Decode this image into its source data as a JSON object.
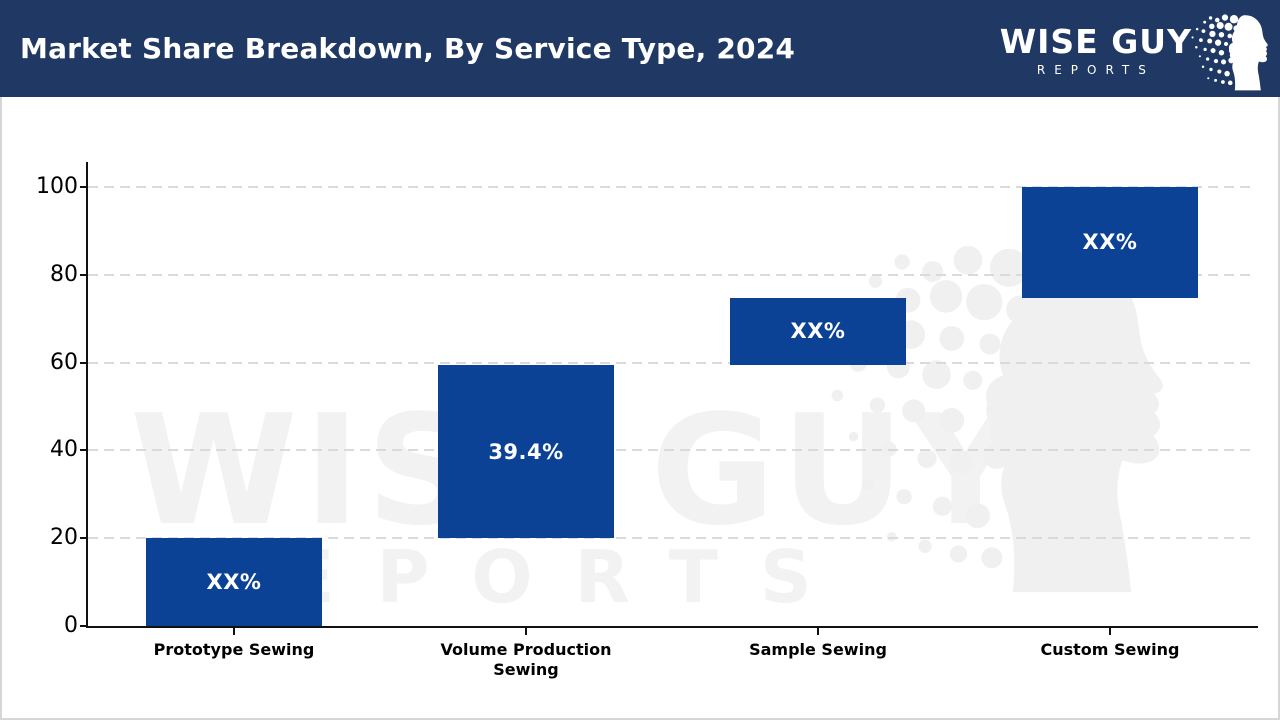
{
  "header": {
    "title": "Market Share Breakdown, By Service Type, 2024",
    "bg_color": "#1f3864",
    "logo": {
      "line1": "WISE GUY",
      "line2": "REPORTS"
    }
  },
  "watermark": {
    "line1": "WISE GUY",
    "line2": "REPORTS"
  },
  "chart_data": {
    "type": "bar",
    "subtype": "waterfall",
    "title": "Market Share Breakdown, By Service Type, 2024",
    "xlabel": "",
    "ylabel": "",
    "ylim": [
      0,
      105
    ],
    "y_ticks": [
      0,
      20,
      40,
      60,
      80,
      100
    ],
    "grid": "horizontal-dashed",
    "bar_color": "#0b4295",
    "value_label_color": "#ffffff",
    "categories": [
      "Prototype Sewing",
      "Volume Production\nSewing",
      "Sample Sewing",
      "Custom Sewing"
    ],
    "bars": [
      {
        "category": "Prototype Sewing",
        "start": 0,
        "end": 20,
        "label": "XX%"
      },
      {
        "category": "Volume Production\nSewing",
        "start": 20,
        "end": 59.4,
        "label": "39.4%"
      },
      {
        "category": "Sample Sewing",
        "start": 59.4,
        "end": 74.8,
        "label": "XX%"
      },
      {
        "category": "Custom Sewing",
        "start": 74.8,
        "end": 100,
        "label": "XX%"
      }
    ]
  }
}
